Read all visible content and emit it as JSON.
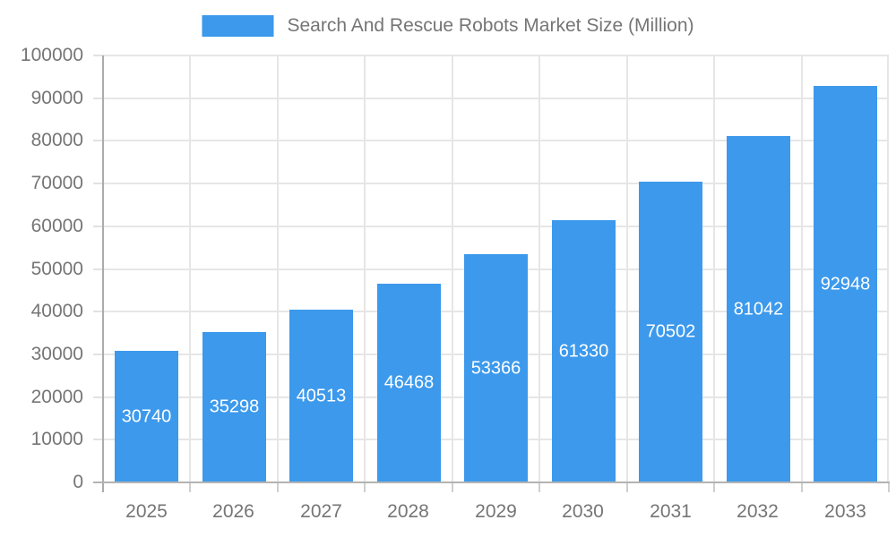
{
  "legend": {
    "label": "Search And Rescue Robots Market Size (Million)",
    "swatch_color": "#3C99EC"
  },
  "chart_data": {
    "type": "bar",
    "title": "Search And Rescue Robots Market Size (Million)",
    "categories": [
      "2025",
      "2026",
      "2027",
      "2028",
      "2029",
      "2030",
      "2031",
      "2032",
      "2033"
    ],
    "values": [
      30740,
      35298,
      40513,
      46468,
      53366,
      61330,
      70502,
      81042,
      92948
    ],
    "bar_value_labels": [
      "30740",
      "35298",
      "40513",
      "46468",
      "53366",
      "61330",
      "70502",
      "81042",
      "92948"
    ],
    "xlabel": "",
    "ylabel": "",
    "ylim": [
      0,
      100000
    ],
    "y_ticks": [
      0,
      10000,
      20000,
      30000,
      40000,
      50000,
      60000,
      70000,
      80000,
      90000,
      100000
    ],
    "grid": true,
    "legend_position": "top-center",
    "colors": {
      "bar": "#3C99EC",
      "bar_label": "#FFFFFF",
      "axis_text": "#757575",
      "grid_line": "#E6E6E6",
      "axis_line": "#ABABAB"
    }
  }
}
